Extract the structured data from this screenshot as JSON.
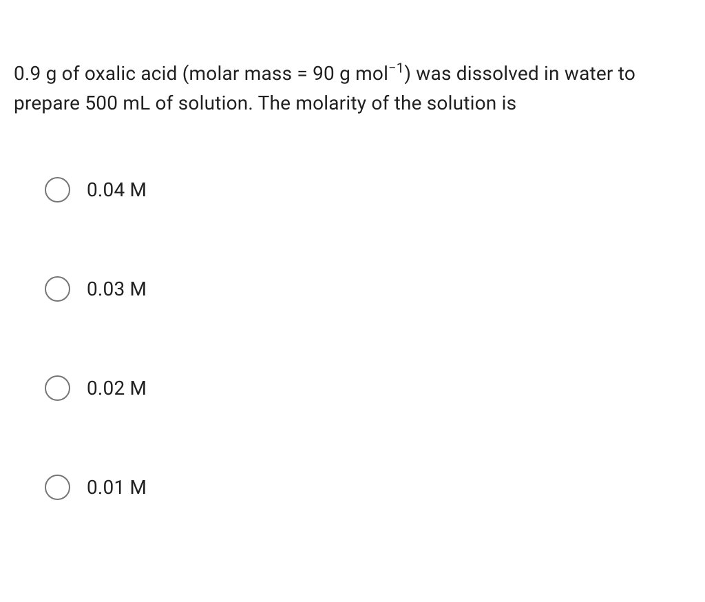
{
  "question": {
    "text_pre": "0.9 g of oxalic acid (molar mass = 90 g mol",
    "sup": "−1",
    "text_post": ") was dissolved in water to prepare 500 mL of solution. The molarity of the solution is"
  },
  "options": [
    {
      "label": "0.04 M"
    },
    {
      "label": "0.03 M"
    },
    {
      "label": "0.02 M"
    },
    {
      "label": "0.01 M"
    }
  ],
  "colors": {
    "text": "#212121",
    "radio_border": "#757575",
    "background": "#ffffff"
  },
  "typography": {
    "question_fontsize": 28,
    "option_fontsize": 28,
    "sup_fontsize": 20
  }
}
